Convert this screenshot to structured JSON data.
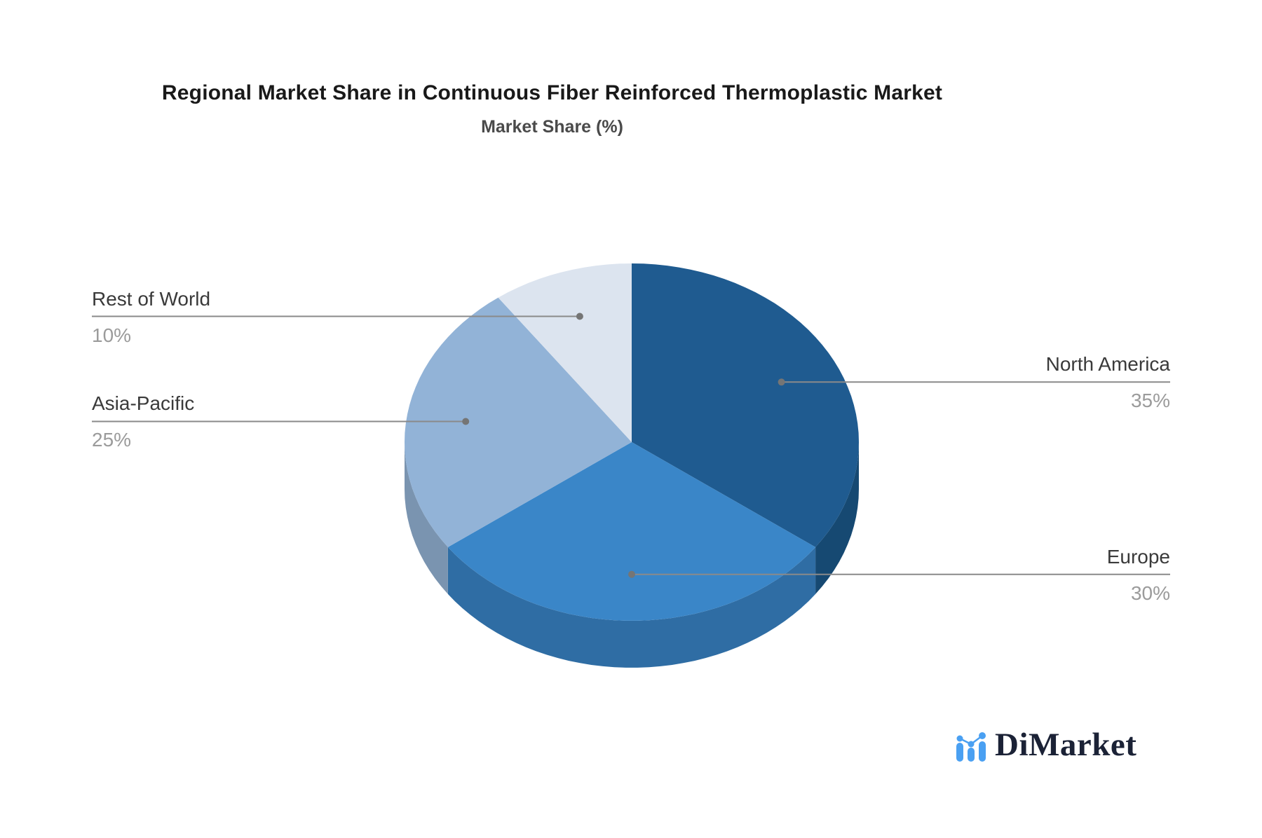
{
  "title": "Regional Market Share in Continuous Fiber Reinforced Thermoplastic Market",
  "subtitle": "Market Share (%)",
  "brand": {
    "name": "DiMarket",
    "icon": "bar-chart-logo-icon",
    "text_color": "#1b2236",
    "accent_color": "#4aa0f2"
  },
  "chart_data": {
    "type": "pie",
    "title": "Regional Market Share in Continuous Fiber Reinforced Thermoplastic Market",
    "subtitle": "Market Share (%)",
    "unit": "%",
    "effect_3d": true,
    "start_angle_deg": 0,
    "direction": "clockwise",
    "legend_position": "none",
    "labels_style": "external-leader-lines",
    "leader_line_color": "#8a8a8a",
    "leader_dot_color": "#757575",
    "label_color": "#3a3a3a",
    "value_color": "#9b9b9b",
    "slices": [
      {
        "label": "North America",
        "value": 35,
        "display": "35%",
        "color": "#1f5b90",
        "side_color": "#164972",
        "label_side": "right"
      },
      {
        "label": "Europe",
        "value": 30,
        "display": "30%",
        "color": "#3a86c8",
        "side_color": "#2f6da4",
        "label_side": "right"
      },
      {
        "label": "Asia-Pacific",
        "value": 25,
        "display": "25%",
        "color": "#92b3d7",
        "side_color": "#7a94b0",
        "label_side": "left"
      },
      {
        "label": "Rest of World",
        "value": 10,
        "display": "10%",
        "color": "#dce4ef",
        "side_color": "#c5cfde",
        "label_side": "left"
      }
    ]
  }
}
